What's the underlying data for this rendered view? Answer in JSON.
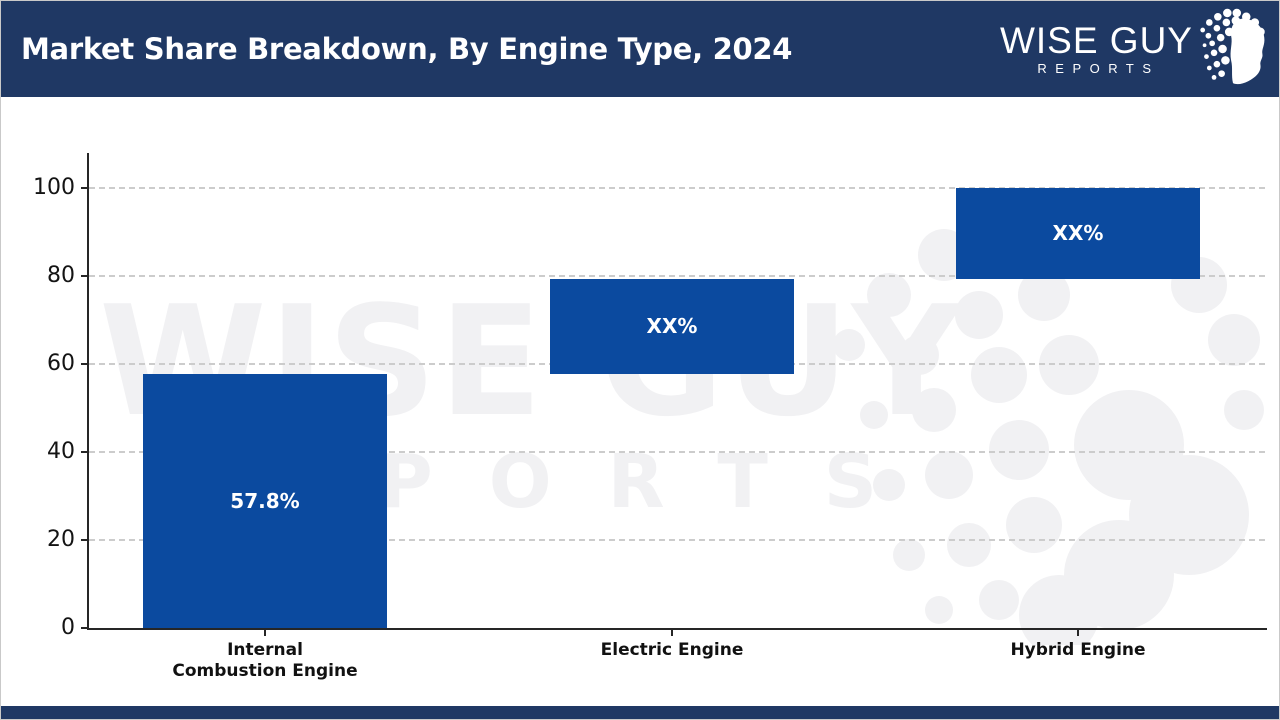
{
  "header": {
    "title": "Market Share Breakdown, By Engine Type, 2024",
    "logo_line1": "WISE GUY",
    "logo_line2": "REPORTS"
  },
  "watermark": {
    "line1": "WISE GUY",
    "line2": "REPORTS"
  },
  "chart_data": {
    "type": "bar",
    "subtype": "stacked-waterfall-percentage",
    "title": "Market Share Breakdown, By Engine Type, 2024",
    "categories": [
      "Internal Combustion Engine",
      "Electric Engine",
      "Hybrid Engine"
    ],
    "segments": [
      {
        "category": "Internal Combustion Engine",
        "category_lines": [
          "Internal",
          "Combustion Engine"
        ],
        "start": 0,
        "end": 57.8,
        "label": "57.8%",
        "estimated_value": 57.8
      },
      {
        "category": "Electric Engine",
        "category_lines": [
          "Electric Engine"
        ],
        "start": 57.8,
        "end": 79.4,
        "label": "XX%",
        "estimated_value": 21.6
      },
      {
        "category": "Hybrid Engine",
        "category_lines": [
          "Hybrid Engine"
        ],
        "start": 79.4,
        "end": 100,
        "label": "XX%",
        "estimated_value": 20.6
      }
    ],
    "yticks": [
      0,
      20,
      40,
      60,
      80,
      100
    ],
    "ylim": [
      0,
      107
    ],
    "xlabel": "",
    "ylabel": "",
    "grid": "horizontal-dashed",
    "legend": "none"
  },
  "colors": {
    "header_bg": "#1f3864",
    "footer_bg": "#1f3864",
    "bar_fill": "#0b4a9f",
    "bar_label": "#ffffff",
    "gridline": "#cccccc",
    "axis": "#262626",
    "watermark": "#f1f1f3"
  }
}
